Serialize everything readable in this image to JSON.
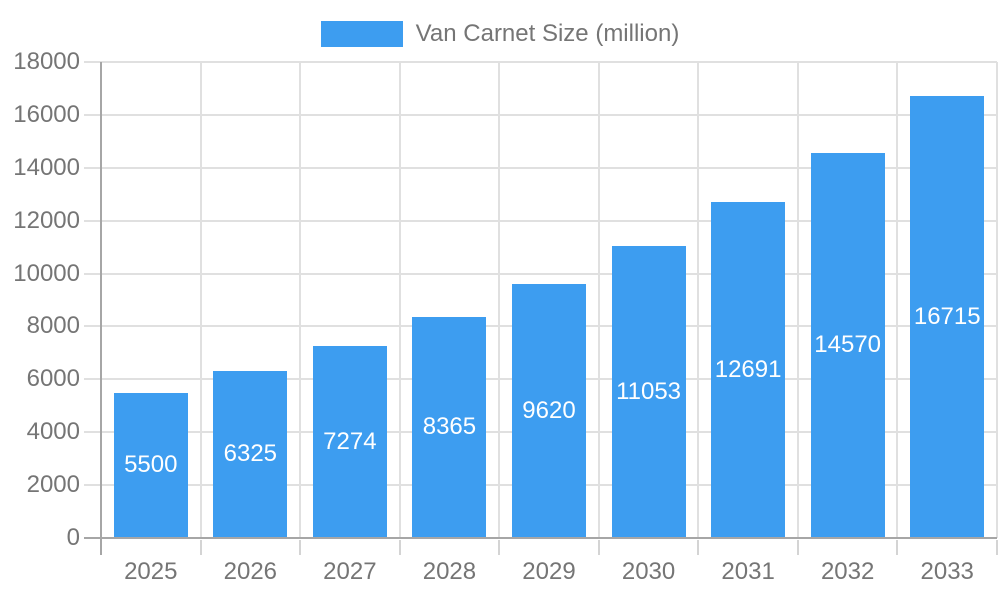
{
  "legend": {
    "label": "Van Carnet Size (million)"
  },
  "chart_data": {
    "type": "bar",
    "title": "Van Carnet Size (million)",
    "categories": [
      "2025",
      "2026",
      "2027",
      "2028",
      "2029",
      "2030",
      "2031",
      "2032",
      "2033"
    ],
    "series": [
      {
        "name": "Van Carnet Size (million)",
        "values": [
          5500,
          6325,
          7274,
          8365,
          9620,
          11053,
          12691,
          14570,
          16715
        ]
      }
    ],
    "xlabel": "",
    "ylabel": "",
    "ylim": [
      0,
      18000
    ],
    "y_ticks": [
      0,
      2000,
      4000,
      6000,
      8000,
      10000,
      12000,
      14000,
      16000,
      18000
    ],
    "grid": true,
    "legend_position": "top",
    "bar_labels_inside": true,
    "colors": {
      "bar": "#3d9df0",
      "grid": "#e0e0e0",
      "axis": "#a6a6a6",
      "tick": "#d4d4d4",
      "text": "#757575",
      "bar_label": "#ffffff",
      "background": "#ffffff"
    }
  }
}
